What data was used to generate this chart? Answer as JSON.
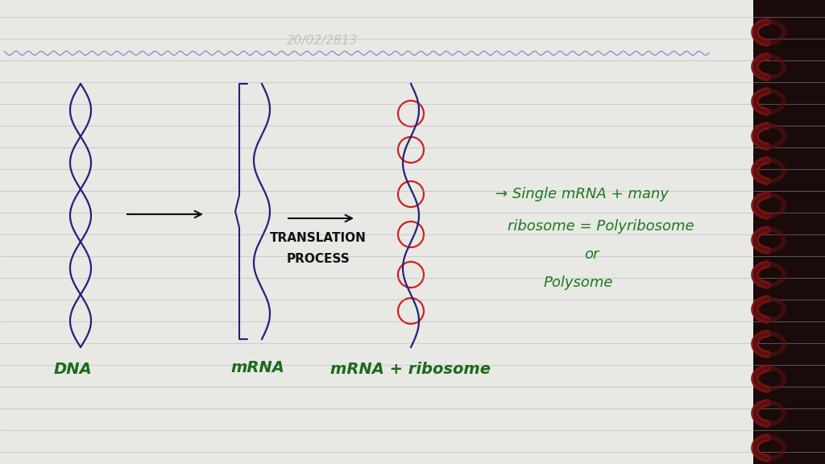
{
  "page_color": "#e8e8e4",
  "line_color": "#a0aabb",
  "title_text": "20/02/2813",
  "title_color": "#999999",
  "title_fontsize": 11,
  "dna_label": "DNA",
  "mrna_label": "mRNA",
  "mrna_ribosome_label": "mRNA + ribosome",
  "label_color": "#1a6b1a",
  "label_fontsize": 14,
  "arrow_color": "#111111",
  "translation_text1": "TRANSLATION",
  "translation_text2": "PROCESS",
  "translation_color": "#111111",
  "translation_fontsize": 11,
  "note_line1": "→ Single mRNA + many",
  "note_line2": "ribosome = Polyribosome",
  "note_line3": "or",
  "note_line4": "Polysome",
  "note_color": "#1a7a1a",
  "note_fontsize": 13,
  "ribosome_color": "#cc2222",
  "strand_color": "#22227a",
  "dna_color": "#22227a",
  "binder_color": "#7a1515",
  "binder_dark": "#4a0808"
}
